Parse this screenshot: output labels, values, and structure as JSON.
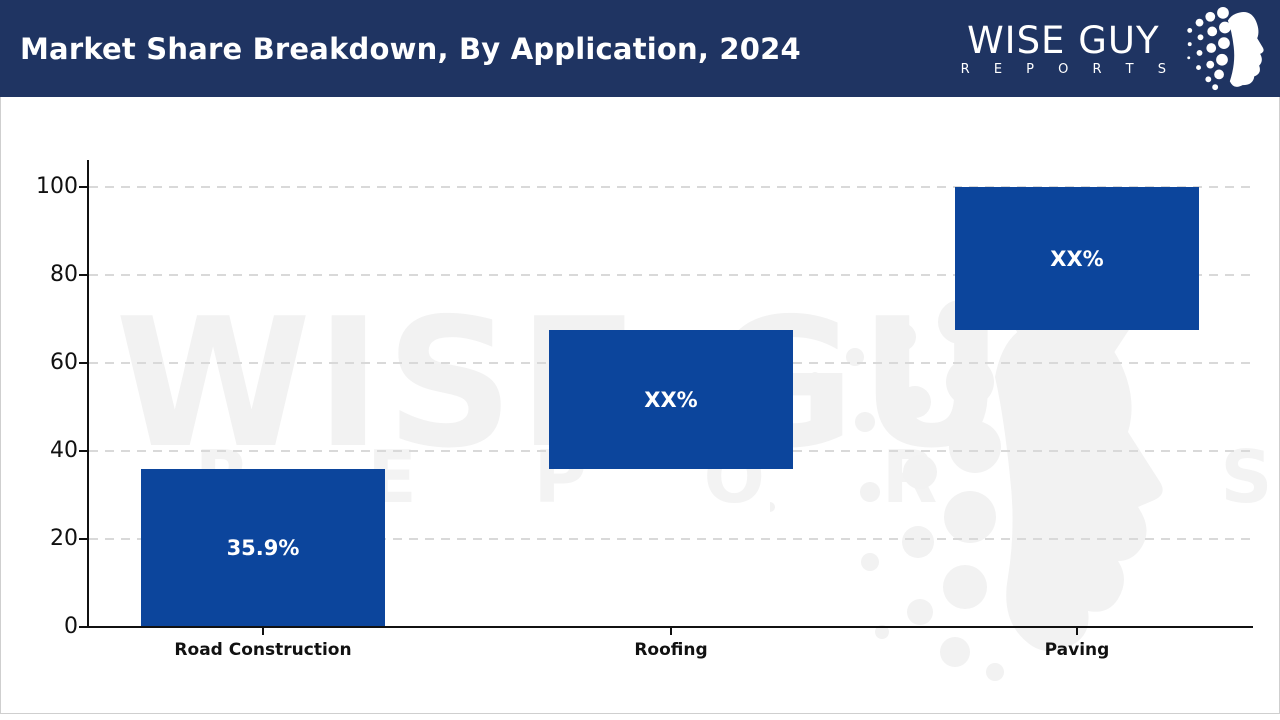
{
  "header": {
    "title": "Market Share Breakdown, By Application, 2024",
    "logo": {
      "line1": "WISE GUY",
      "line2": "R E P O R T S"
    }
  },
  "watermark": {
    "line1": "WISE GUY",
    "line2": "R E P O R T S"
  },
  "colors": {
    "header_bg": "#1f3462",
    "bar": "#0c459c",
    "grid": "#d9d9d9",
    "axis": "#111111",
    "bar_label": "#ffffff",
    "watermark": "#f2f2f2",
    "frame_border": "#cfcfcf"
  },
  "chart_data": {
    "type": "bar",
    "subtype": "floating-waterfall",
    "title": "Market Share Breakdown, By Application, 2024",
    "xlabel": "",
    "ylabel": "",
    "categories": [
      "Road Construction",
      "Roofing",
      "Paving"
    ],
    "segments": [
      {
        "category": "Road Construction",
        "start": 0,
        "end": 35.9,
        "label": "35.9%"
      },
      {
        "category": "Roofing",
        "start": 35.9,
        "end": 67.4,
        "label": "XX%"
      },
      {
        "category": "Paving",
        "start": 67.4,
        "end": 100,
        "label": "XX%"
      }
    ],
    "yticks": [
      0,
      20,
      40,
      60,
      80,
      100
    ],
    "ylim": [
      0,
      105
    ],
    "grid": "horizontal-dashed",
    "legend": "none",
    "bar_color": "#0c459c"
  }
}
